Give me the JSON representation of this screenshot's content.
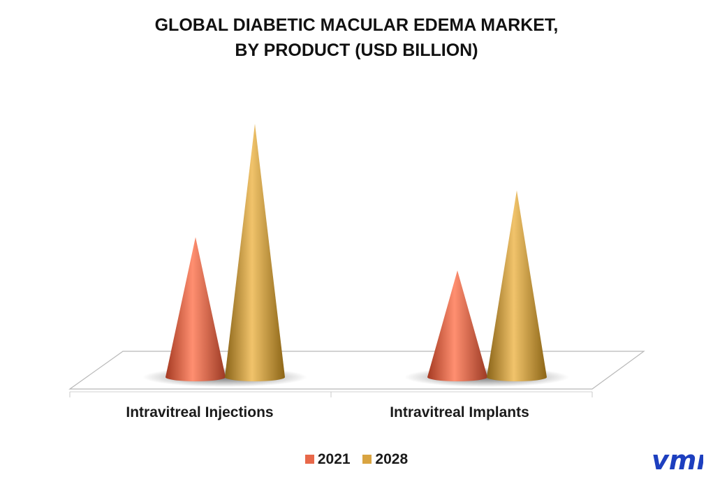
{
  "title_lines": [
    "GLOBAL DIABETIC MACULAR EDEMA MARKET,",
    "BY PRODUCT (USD BILLION)"
  ],
  "logo_text": "vmr",
  "colors": {
    "series_2021": "#e8684a",
    "series_2028": "#d9a441",
    "logo": "#1d3fbf"
  },
  "chart_data": {
    "type": "bar",
    "shape": "cone",
    "title": "GLOBAL DIABETIC MACULAR EDEMA MARKET, BY PRODUCT (USD BILLION)",
    "categories": [
      "Intravitreal Injections",
      "Intravitreal Implants"
    ],
    "series": [
      {
        "name": "2021",
        "values": [
          2.1,
          1.6
        ]
      },
      {
        "name": "2028",
        "values": [
          3.8,
          2.8
        ]
      }
    ],
    "ylim": [
      0,
      4
    ],
    "grid": false,
    "legend": "bottom"
  }
}
